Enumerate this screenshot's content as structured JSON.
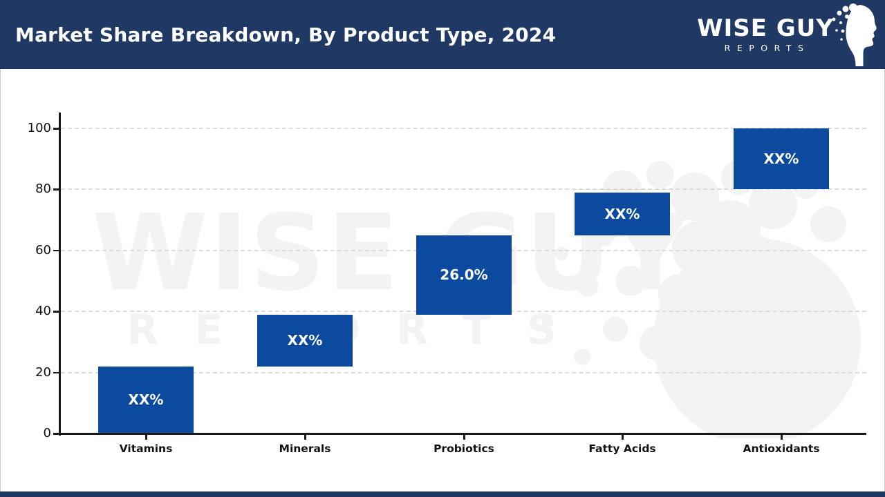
{
  "header": {
    "title": "Market Share Breakdown, By Product Type, 2024",
    "logo": {
      "line1": "WISE GUY",
      "line2": "REPORTS"
    }
  },
  "watermark": {
    "line1": "WISE GUY",
    "line2": "REPORTS"
  },
  "chart_data": {
    "type": "bar",
    "subtype": "waterfall",
    "title": "Market Share Breakdown, By Product Type, 2024",
    "categories": [
      "Vitamins",
      "Minerals",
      "Probiotics",
      "Fatty Acids",
      "Antioxidants"
    ],
    "bars": [
      {
        "category": "Vitamins",
        "start": 0,
        "end": 22,
        "label": "XX%"
      },
      {
        "category": "Minerals",
        "start": 22,
        "end": 39,
        "label": "XX%"
      },
      {
        "category": "Probiotics",
        "start": 39,
        "end": 65,
        "label": "26.0%"
      },
      {
        "category": "Fatty Acids",
        "start": 65,
        "end": 79,
        "label": "XX%"
      },
      {
        "category": "Antioxidants",
        "start": 80,
        "end": 100,
        "label": "XX%"
      }
    ],
    "y_ticks": [
      0,
      20,
      40,
      60,
      80,
      100
    ],
    "ylim": [
      0,
      100
    ],
    "xlabel": "",
    "ylabel": "",
    "legend": "none",
    "grid": "horizontal-dashed",
    "bar_color": "#0b4a9f",
    "value_label_color": "#ffffff"
  },
  "colors": {
    "header_bg": "#1f3864",
    "footer_bg": "#1f3864",
    "grid": "#dcdcdc",
    "axis": "#1a1a1a",
    "watermark": "#f3f3f3"
  }
}
